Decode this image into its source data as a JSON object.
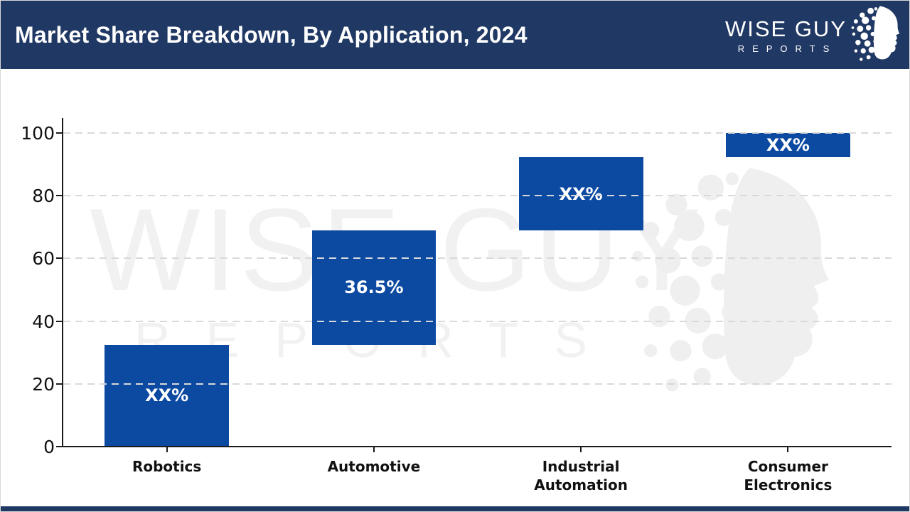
{
  "header": {
    "title": "Market Share Breakdown, By Application, 2024",
    "bg_color": "#203864",
    "logo": {
      "wordmark": "WISE GUY",
      "subtext": "REPORTS"
    }
  },
  "watermark": {
    "line1": "WISE GUY",
    "line2": "REPORTS"
  },
  "chart_data": {
    "type": "bar",
    "subtype": "waterfall",
    "title": "Market Share Breakdown, By Application, 2024",
    "categories": [
      "Robotics",
      "Automotive",
      "Industrial\nAutomation",
      "Consumer\nElectronics"
    ],
    "segments": [
      {
        "category": "Robotics",
        "start": 0,
        "end": 32.5,
        "label": "XX%"
      },
      {
        "category": "Automotive",
        "start": 32.5,
        "end": 69.0,
        "label": "36.5%"
      },
      {
        "category": "Industrial Automation",
        "start": 69.0,
        "end": 92.2,
        "label": "XX%"
      },
      {
        "category": "Consumer Electronics",
        "start": 92.2,
        "end": 100.0,
        "label": "XX%"
      }
    ],
    "xlabel": "",
    "ylabel": "",
    "ylim": [
      0,
      100
    ],
    "yticks": [
      0,
      20,
      40,
      60,
      80,
      100
    ],
    "grid": "horizontal-dashed",
    "legend": "none",
    "bar_color": "#0c4aa2",
    "bar_label_color": "#ffffff",
    "axis_color": "#1a1a1a",
    "grid_color": "#d9d9d9"
  },
  "footer": {
    "bg_color": "#203864"
  }
}
